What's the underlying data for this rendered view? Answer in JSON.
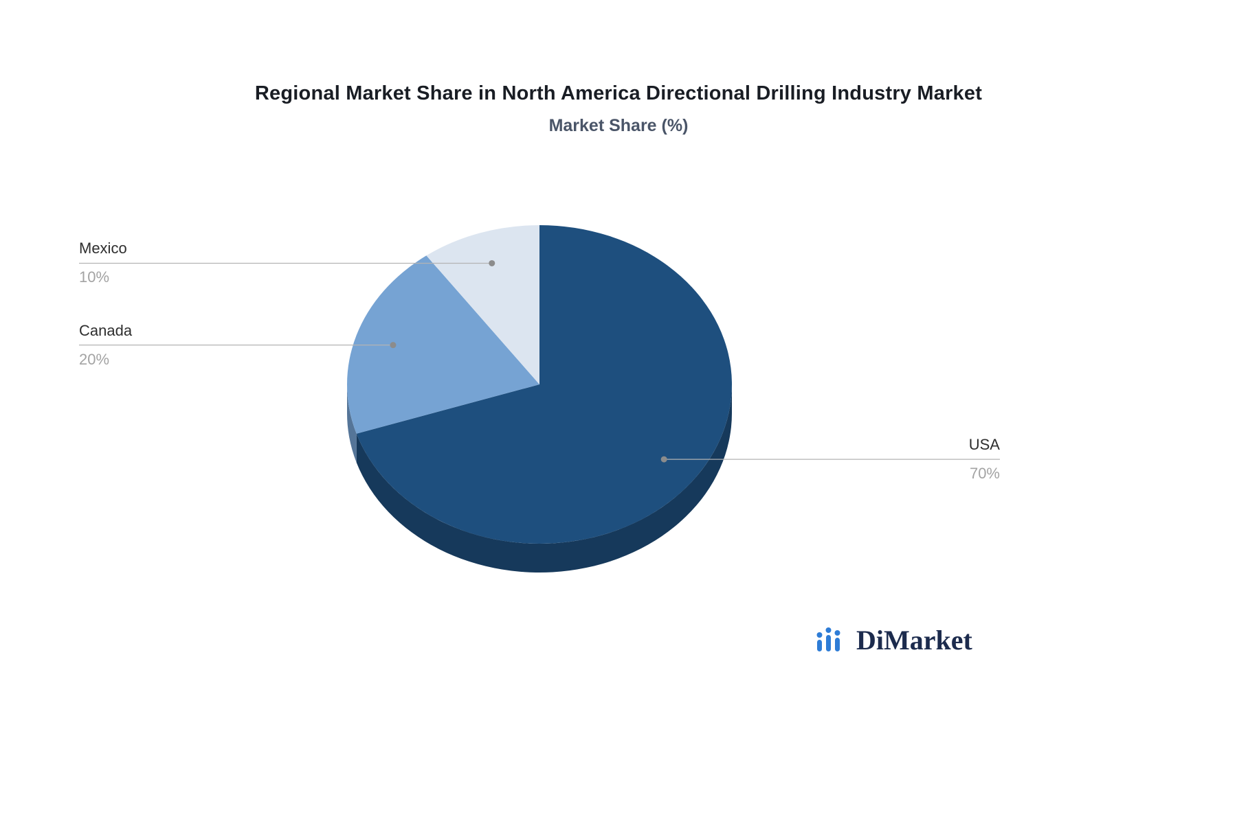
{
  "brand": {
    "name": "DiMarket",
    "icon": "bar-chart-logo-icon",
    "icon_color": "#2e7cd6",
    "text_color": "#1c2b4d"
  },
  "chart_data": {
    "type": "pie",
    "title": "Regional Market Share in North America Directional Drilling Industry Market",
    "subtitle": "Market Share (%)",
    "categories": [
      "USA",
      "Canada",
      "Mexico"
    ],
    "values": [
      70,
      20,
      10
    ],
    "unit": "%",
    "slice_colors": [
      "#1e4f7e",
      "#76a3d3",
      "#dce5f0"
    ],
    "style": "3d-pie",
    "start_angle_deg": 0,
    "direction": "clockwise",
    "legend_position": "none",
    "label_style": "callout-lines",
    "labels": [
      {
        "name": "USA",
        "value_text": "70%",
        "side": "right"
      },
      {
        "name": "Canada",
        "value_text": "20%",
        "side": "left"
      },
      {
        "name": "Mexico",
        "value_text": "10%",
        "side": "left"
      }
    ],
    "callout_colors": {
      "line": "#b3b3b3",
      "dot": "#8c8c8c",
      "name_text": "#2e2e2e",
      "value_text": "#a3a3a3"
    }
  }
}
